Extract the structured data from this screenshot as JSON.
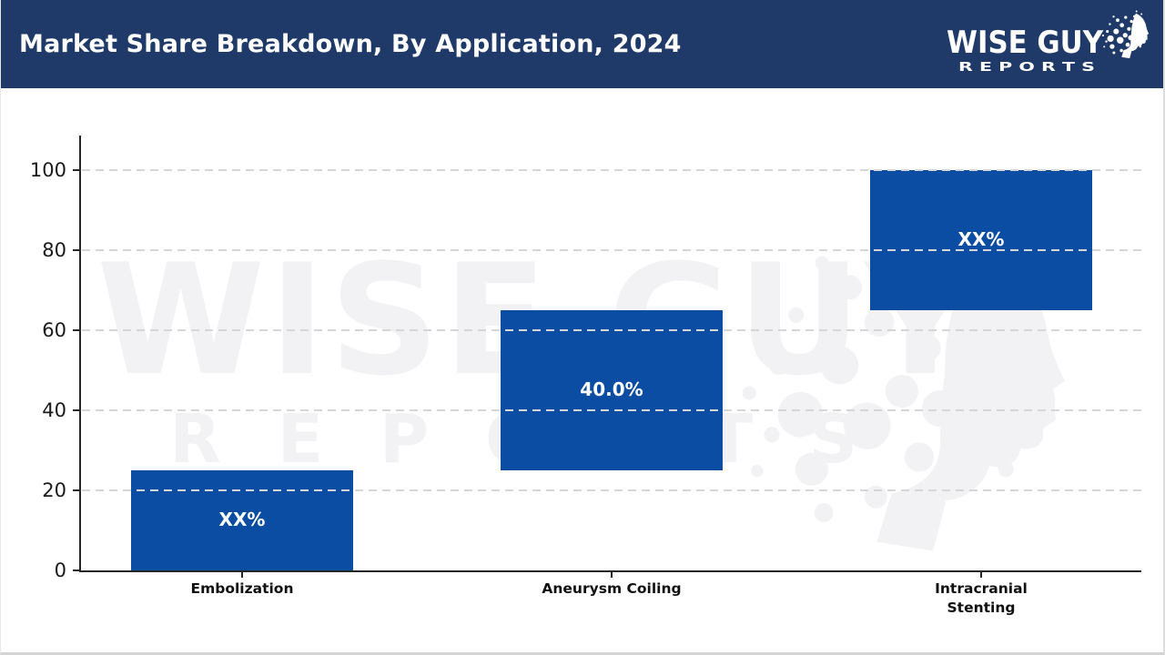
{
  "header": {
    "title": "Market Share Breakdown, By Application, 2024",
    "logo": {
      "brand": "WISE GUY",
      "tagline": "R E P O R T S"
    }
  },
  "watermark": {
    "brand": "WISE GUY",
    "tagline": "R E P O R T S"
  },
  "colors": {
    "header_bg": "#1f3a68",
    "bar": "#0b4da2",
    "bar_label": "#ffffff",
    "grid": "#d6d6d6",
    "axis": "#262626",
    "watermark": "#f2f2f4",
    "text": "#111111"
  },
  "chart_data": {
    "type": "bar",
    "subtype": "floating-waterfall",
    "title": "Market Share Breakdown, By Application, 2024",
    "categories": [
      "Embolization",
      "Aneurysm Coiling",
      "Intracranial Stenting"
    ],
    "bars": [
      {
        "category": "Embolization",
        "start": 0,
        "end": 25,
        "label": "XX%"
      },
      {
        "category": "Aneurysm Coiling",
        "start": 25,
        "end": 65,
        "label": "40.0%"
      },
      {
        "category": "Intracranial Stenting",
        "start": 65,
        "end": 100,
        "label": "XX%"
      }
    ],
    "yticks": [
      0,
      20,
      40,
      60,
      80,
      100
    ],
    "ylim": [
      0,
      108.5
    ],
    "xlabel": "",
    "ylabel": "",
    "grid": "horizontal-dashed-over-bars",
    "legend": "none"
  }
}
